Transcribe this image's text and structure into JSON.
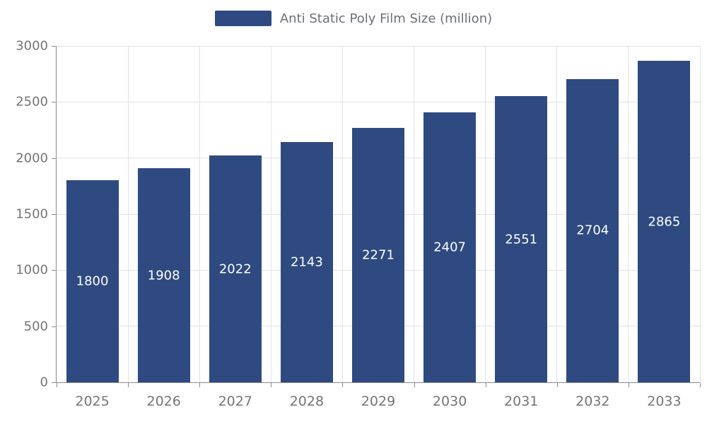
{
  "chart_data": {
    "type": "bar",
    "title": "Anti Static Poly Film Size (million)",
    "categories": [
      "2025",
      "2026",
      "2027",
      "2028",
      "2029",
      "2030",
      "2031",
      "2032",
      "2033"
    ],
    "values": [
      1800,
      1908,
      2022,
      2143,
      2271,
      2407,
      2551,
      2704,
      2865
    ],
    "xlabel": "",
    "ylabel": "",
    "ylim": [
      0,
      3000
    ],
    "yticks": [
      0,
      500,
      1000,
      1500,
      2000,
      2500,
      3000
    ],
    "grid": true,
    "legend_position": "top",
    "bar_labels_inside": true
  },
  "colors": {
    "bar": "#2e4a80",
    "bar_label": "#ffffff",
    "axis": "#8c8c8c",
    "grid": "#e3e3e3",
    "tick_text": "#757575",
    "title_text": "#6e7079"
  }
}
